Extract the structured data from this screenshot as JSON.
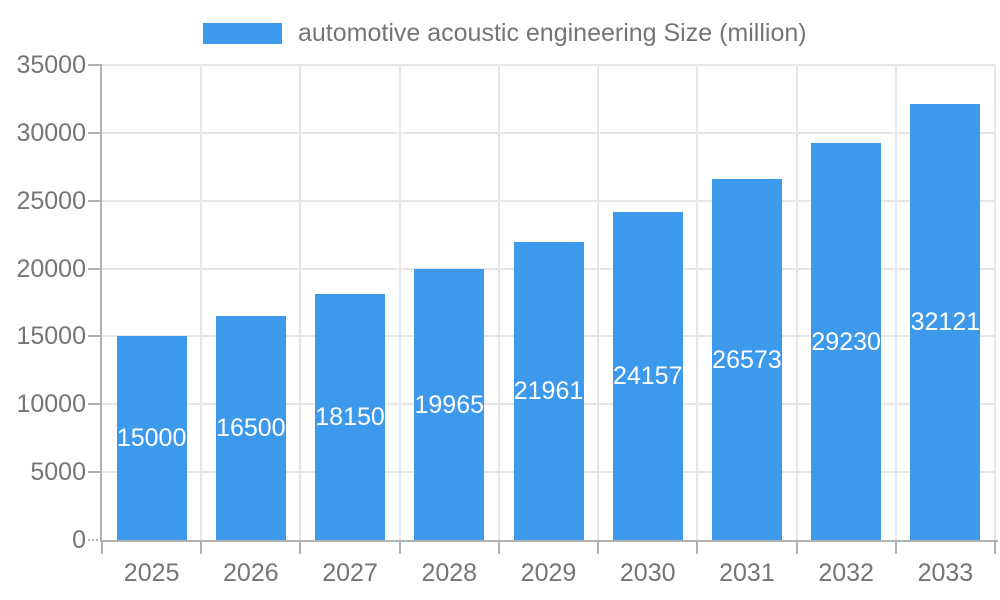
{
  "legend": {
    "label": "automotive acoustic engineering Size (million)"
  },
  "chart_data": {
    "type": "bar",
    "title": "",
    "xlabel": "",
    "ylabel": "",
    "categories": [
      "2025",
      "2026",
      "2027",
      "2028",
      "2029",
      "2030",
      "2031",
      "2032",
      "2033"
    ],
    "series": [
      {
        "name": "automotive acoustic engineering Size (million)",
        "values": [
          15000,
          16500,
          18150,
          19965,
          21961,
          24157,
          26573,
          29230,
          32121
        ]
      }
    ],
    "bar_labels": [
      "15000",
      "16500",
      "18150",
      "19965",
      "21961",
      "24157",
      "26573",
      "29230",
      "32121"
    ],
    "ylim": [
      0,
      35000
    ],
    "yticks": [
      0,
      5000,
      10000,
      15000,
      20000,
      25000,
      30000,
      35000
    ],
    "ytick_labels": [
      "0",
      "5000",
      "10000",
      "15000",
      "20000",
      "25000",
      "30000",
      "35000"
    ],
    "grid": true,
    "legend_position": "top-center",
    "bar_label_position": "inside-center"
  },
  "colors": {
    "bar": "#3C99EC",
    "grid": "#E6E6E6",
    "axis": "#B0B0B0",
    "tick_text": "#757575",
    "legend_text": "#757575",
    "bar_label_text": "#FFFFFF",
    "background": "#FFFFFF"
  }
}
